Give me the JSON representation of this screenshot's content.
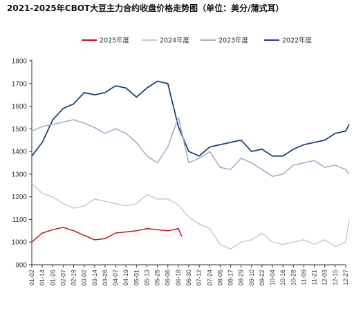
{
  "title": "2021-2025年CBOT大豆主力合约收盘价格走势图（单位：美分/蒲式耳）",
  "chart_data": {
    "type": "line",
    "ylim": [
      900,
      1800
    ],
    "yticks": [
      900,
      1000,
      1100,
      1200,
      1300,
      1400,
      1500,
      1600,
      1700,
      1800
    ],
    "x_ticks": [
      "01-02",
      "01-14",
      "01-26",
      "02-07",
      "02-19",
      "03-02",
      "03-14",
      "03-26",
      "04-07",
      "04-19",
      "05-01",
      "05-13",
      "05-25",
      "06-06",
      "06-18",
      "06-30",
      "07-12",
      "07-24",
      "08-05",
      "08-17",
      "08-29",
      "09-10",
      "09-22",
      "10-04",
      "10-16",
      "10-28",
      "11-09",
      "11-21",
      "12-03",
      "12-15",
      "12-27"
    ],
    "legend_position": "top",
    "grid": false,
    "series": [
      {
        "name": "2025年度",
        "color": "#c0141c",
        "x": [
          "01-02",
          "01-14",
          "01-26",
          "02-07",
          "02-19",
          "03-02",
          "03-14",
          "03-26",
          "04-07",
          "04-19",
          "05-01",
          "05-13",
          "05-25",
          "06-06",
          "06-18",
          "06-22"
        ],
        "values": [
          1000,
          1040,
          1055,
          1065,
          1050,
          1030,
          1010,
          1015,
          1040,
          1045,
          1050,
          1060,
          1055,
          1050,
          1060,
          1025
        ]
      },
      {
        "name": "2024年度",
        "color": "#c9c9c9",
        "x": [
          "01-02",
          "01-14",
          "01-26",
          "02-07",
          "02-19",
          "03-02",
          "03-14",
          "03-26",
          "04-07",
          "04-19",
          "05-01",
          "05-13",
          "05-25",
          "06-06",
          "06-18",
          "06-30",
          "07-12",
          "07-24",
          "08-05",
          "08-17",
          "08-29",
          "09-10",
          "09-22",
          "10-04",
          "10-16",
          "10-28",
          "11-09",
          "11-21",
          "12-03",
          "12-15",
          "12-27",
          "12-31"
        ],
        "values": [
          1260,
          1215,
          1200,
          1170,
          1150,
          1160,
          1190,
          1180,
          1170,
          1160,
          1170,
          1210,
          1190,
          1190,
          1165,
          1110,
          1080,
          1060,
          990,
          970,
          1000,
          1010,
          1040,
          1000,
          990,
          1000,
          1010,
          990,
          1010,
          980,
          1000,
          1100
        ]
      },
      {
        "name": "2023年度",
        "color": "#95acc9",
        "x": [
          "01-02",
          "01-14",
          "01-26",
          "02-07",
          "02-19",
          "03-02",
          "03-14",
          "03-26",
          "04-07",
          "04-19",
          "05-01",
          "05-13",
          "05-25",
          "06-06",
          "06-18",
          "06-30",
          "07-12",
          "07-24",
          "08-05",
          "08-17",
          "08-29",
          "09-10",
          "09-22",
          "10-04",
          "10-16",
          "10-28",
          "11-09",
          "11-21",
          "12-03",
          "12-15",
          "12-27",
          "12-31"
        ],
        "values": [
          1490,
          1510,
          1520,
          1530,
          1540,
          1525,
          1505,
          1480,
          1500,
          1480,
          1440,
          1380,
          1350,
          1420,
          1550,
          1350,
          1370,
          1400,
          1330,
          1320,
          1370,
          1350,
          1320,
          1290,
          1300,
          1340,
          1350,
          1360,
          1330,
          1340,
          1320,
          1300
        ]
      },
      {
        "name": "2022年度",
        "color": "#1d3f7a",
        "x": [
          "01-02",
          "01-14",
          "01-26",
          "02-07",
          "02-19",
          "03-02",
          "03-14",
          "03-26",
          "04-07",
          "04-19",
          "05-01",
          "05-13",
          "05-25",
          "06-06",
          "06-18",
          "06-30",
          "07-12",
          "07-24",
          "08-05",
          "08-17",
          "08-29",
          "09-10",
          "09-22",
          "10-04",
          "10-16",
          "10-28",
          "11-09",
          "11-21",
          "12-03",
          "12-15",
          "12-27",
          "12-31"
        ],
        "values": [
          1380,
          1440,
          1540,
          1590,
          1610,
          1660,
          1650,
          1660,
          1690,
          1680,
          1640,
          1680,
          1710,
          1700,
          1510,
          1400,
          1380,
          1420,
          1430,
          1440,
          1450,
          1400,
          1410,
          1380,
          1380,
          1410,
          1430,
          1440,
          1450,
          1480,
          1490,
          1520
        ]
      }
    ]
  }
}
